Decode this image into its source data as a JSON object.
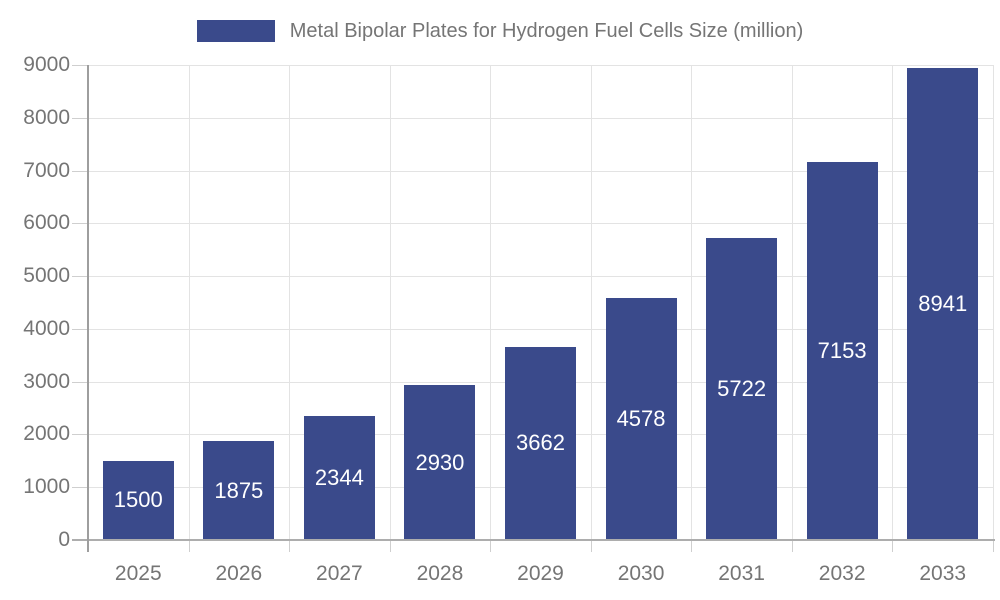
{
  "chart_data": {
    "type": "bar",
    "title": "Metal Bipolar Plates for Hydrogen Fuel Cells Size (million)",
    "categories": [
      "2025",
      "2026",
      "2027",
      "2028",
      "2029",
      "2030",
      "2031",
      "2032",
      "2033"
    ],
    "values": [
      1500,
      1875,
      2344,
      2930,
      3662,
      4578,
      5722,
      7153,
      8941
    ],
    "xlabel": "",
    "ylabel": "",
    "ylim": [
      0,
      9000
    ],
    "ytick_step": 1000,
    "grid": true,
    "legend_position": "top-center",
    "colors": {
      "bar": "#3A4A8B",
      "bar_value_text": "#FFFFFF",
      "axis_text": "#757575",
      "legend_text": "#757575",
      "gridline": "#E3E3E3",
      "axis_line": "#ADADAD",
      "y_axis_line": "#9E9E9E",
      "tick": "#CFCFCF",
      "background": "#FFFFFF"
    }
  }
}
